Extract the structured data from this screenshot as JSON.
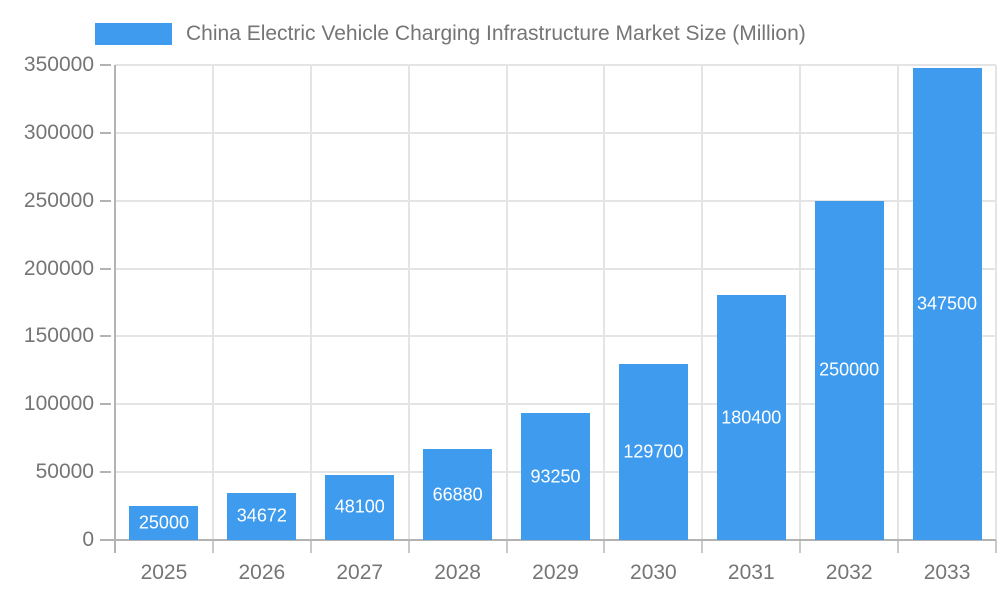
{
  "chart_data": {
    "type": "bar",
    "title": "China Electric Vehicle Charging Infrastructure Market Size (Million)",
    "legend": {
      "label": "China Electric Vehicle Charging Infrastructure Market Size (Million)",
      "position": "top"
    },
    "categories": [
      "2025",
      "2026",
      "2027",
      "2028",
      "2029",
      "2030",
      "2031",
      "2032",
      "2033"
    ],
    "values": [
      25000,
      34672,
      48100,
      66880,
      93250,
      129700,
      180400,
      250000,
      347500
    ],
    "value_labels": [
      "25000",
      "34672",
      "48100",
      "66880",
      "93250",
      "129700",
      "180400",
      "250000",
      "347500"
    ],
    "xlabel": "",
    "ylabel": "",
    "ylim": [
      0,
      350000
    ],
    "ytick_step": 50000,
    "ytick_labels": [
      "0",
      "50000",
      "100000",
      "150000",
      "200000",
      "250000",
      "300000",
      "350000"
    ],
    "grid": true,
    "colors": {
      "bar": "#3e9bee",
      "axis_text": "#757575",
      "value_text": "#ffffff",
      "gridline": "#e4e4e4",
      "axis_line": "#b3b3b3",
      "background": "#ffffff"
    }
  }
}
